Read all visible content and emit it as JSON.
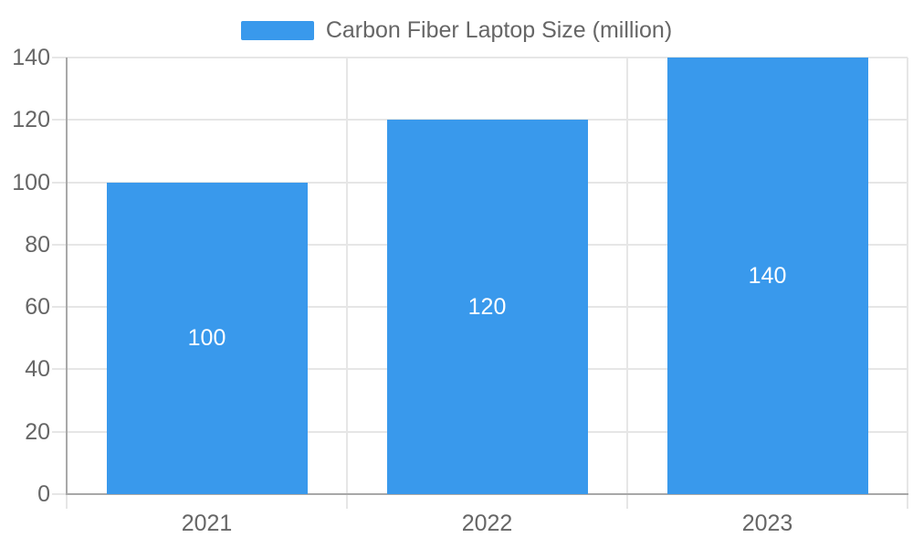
{
  "colors": {
    "bar": "#3999ec",
    "grid": "#e6e6e6",
    "axis": "#a8a8a8",
    "tick_label": "#666666",
    "legend_text": "#666666",
    "data_label": "#ffffff",
    "background": "#ffffff"
  },
  "chart_data": {
    "type": "bar",
    "title": "Carbon Fiber Laptop Size (million)",
    "series_name": "Carbon Fiber Laptop Size (million)",
    "categories": [
      "2021",
      "2022",
      "2023"
    ],
    "values": [
      100,
      120,
      140
    ],
    "data_labels": [
      "100",
      "120",
      "140"
    ],
    "xlabel": "",
    "ylabel": "",
    "ylim": [
      0,
      140
    ],
    "yticks": [
      0,
      20,
      40,
      60,
      80,
      100,
      120,
      140
    ],
    "grid": true,
    "legend_position": "top-center",
    "data_label_position": "center-of-bar"
  }
}
